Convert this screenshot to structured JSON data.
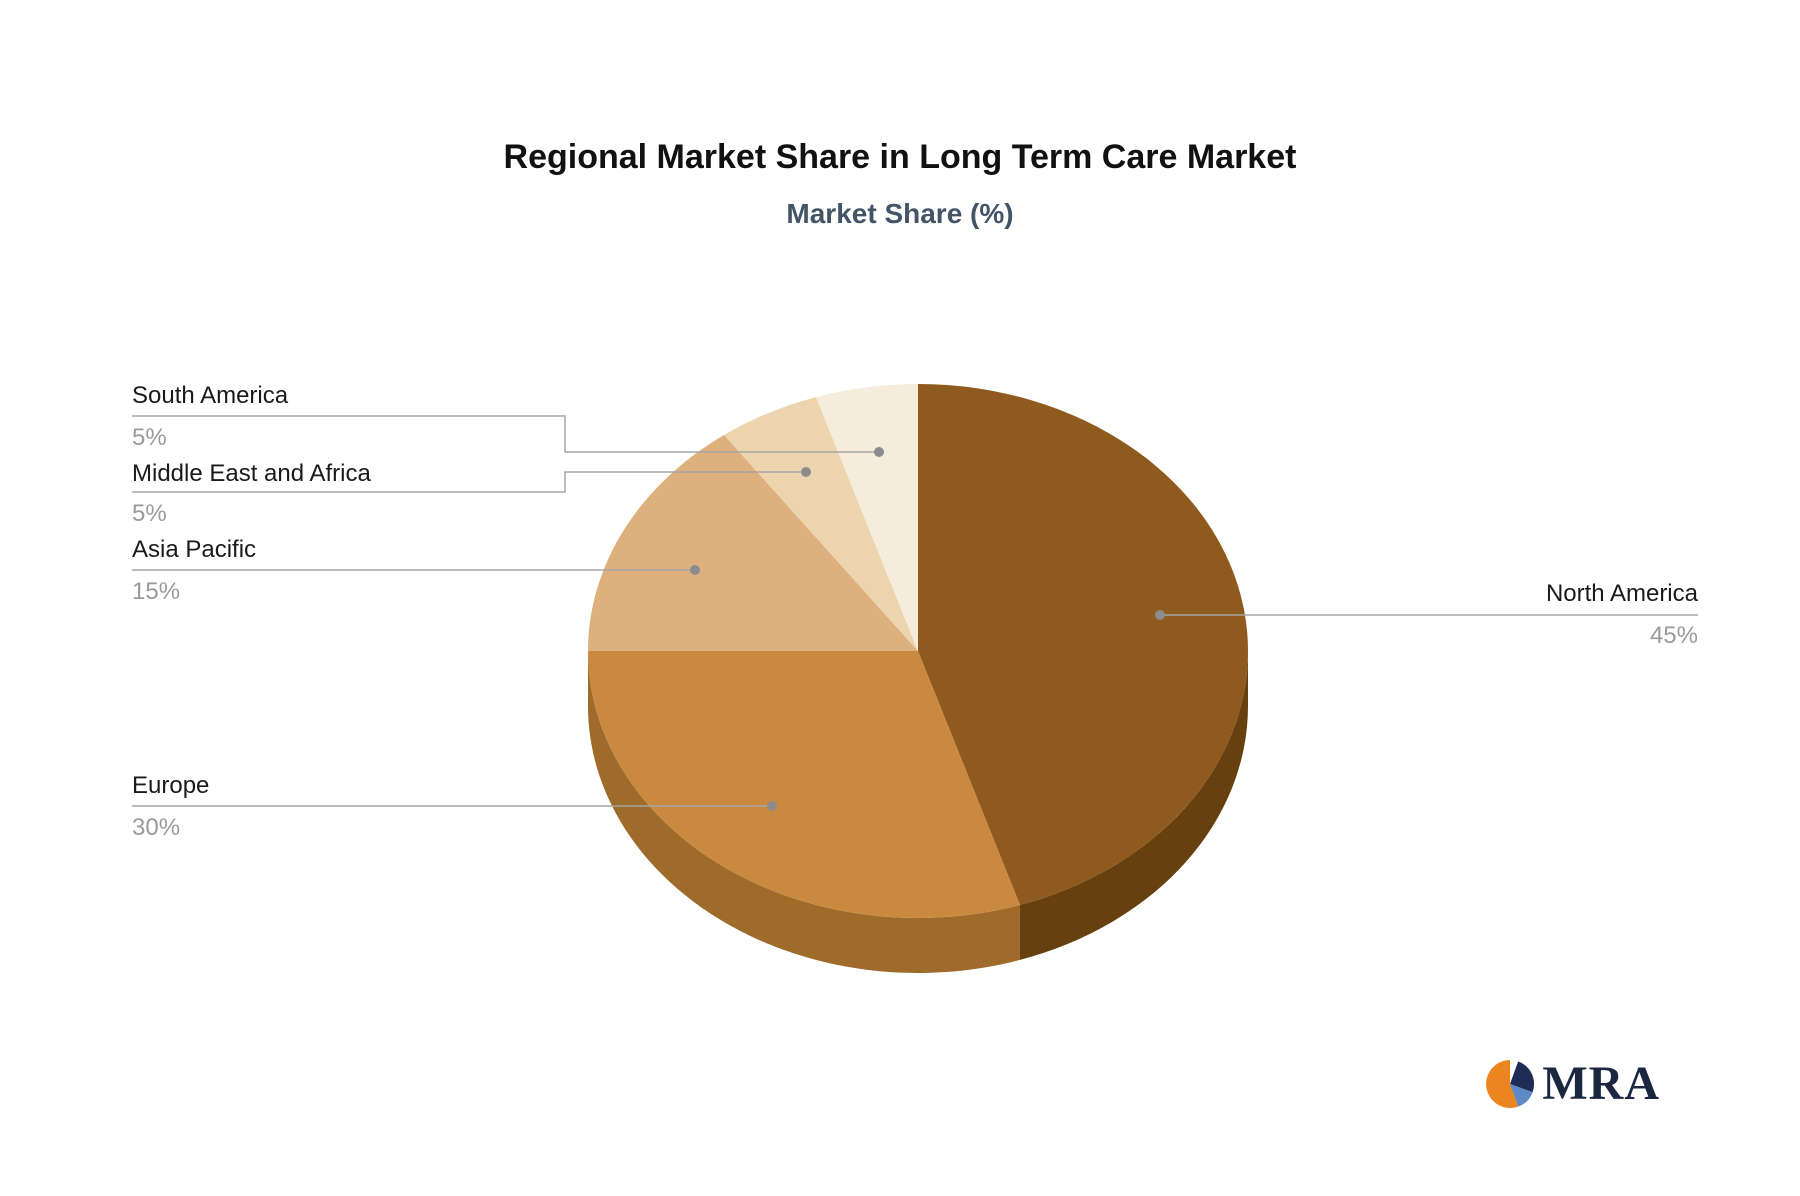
{
  "chart_data": {
    "type": "pie",
    "title": "Regional Market Share in Long Term Care Market",
    "subtitle": "Market Share (%)",
    "unit": "%",
    "direction": "clockwise",
    "start_angle_deg": 0,
    "legend_position": "none",
    "style_3d": true,
    "points": [
      {
        "label": "North America",
        "value": 45,
        "pct_label": "45%",
        "color": "#8f5a1d",
        "side_color": "#66410f"
      },
      {
        "label": "Europe",
        "value": 30,
        "pct_label": "30%",
        "color": "#c98a3f",
        "side_color": "#9e6b2b"
      },
      {
        "label": "Asia Pacific",
        "value": 15,
        "pct_label": "15%",
        "color": "#deb07d",
        "side_color": "#b28950"
      },
      {
        "label": "Middle East and Africa",
        "value": 5,
        "pct_label": "5%",
        "color": "#ecd5ae",
        "side_color": "#c0a478"
      },
      {
        "label": "South America",
        "value": 5,
        "pct_label": "5%",
        "color": "#f5ecdc",
        "side_color": "#cfc3a9"
      }
    ],
    "labels_style": {
      "name_color": "#1a1a1a",
      "pct_color": "#9a9a9a",
      "line_color": "#a6a6a6",
      "dot_color": "#8c8c8c"
    }
  },
  "branding": {
    "logo_text": "MRA",
    "text_color": "#1b2740",
    "icon_colors": {
      "orange": "#ec8420",
      "navy": "#1f2c55",
      "blue": "#5d89c6",
      "white": "#ffffff"
    }
  }
}
